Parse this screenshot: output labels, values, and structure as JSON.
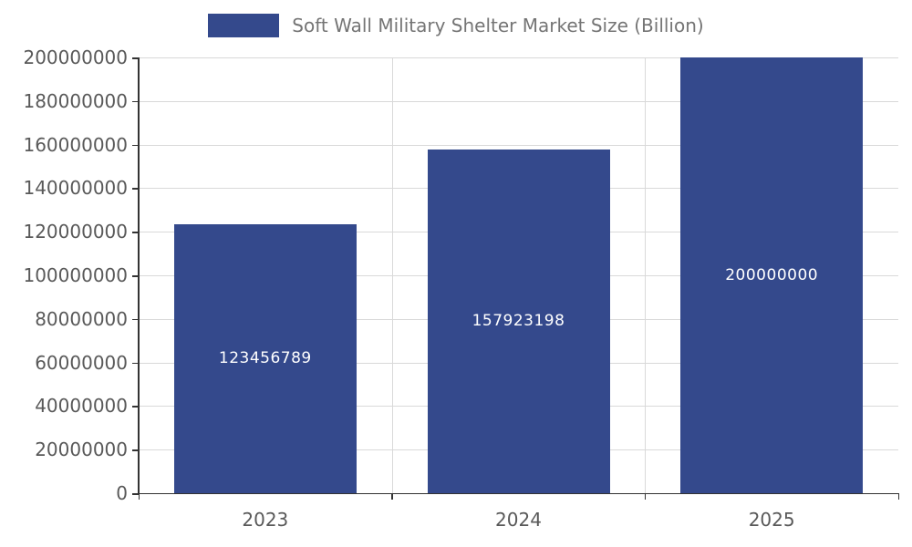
{
  "title": "Soft Wall Military Shelter Market Size (Billion)",
  "colors": {
    "bar": "#34498C",
    "grid": "#D9D9D9",
    "axis": "#333333",
    "tick_label": "#595959",
    "title_text": "#757575",
    "bar_label": "#FFFFFF",
    "background": "#FFFFFF"
  },
  "chart_data": {
    "type": "bar",
    "title": "Soft Wall Military Shelter Market Size (Billion)",
    "categories": [
      "2023",
      "2024",
      "2025"
    ],
    "values": [
      123456789,
      157923198,
      200000000
    ],
    "data_labels": [
      "123456789",
      "157923198",
      "200000000"
    ],
    "series": [
      {
        "name": "Soft Wall Military Shelter Market Size (Billion)",
        "values": [
          123456789,
          157923198,
          200000000
        ]
      }
    ],
    "xlabel": "",
    "ylabel": "",
    "ylim": [
      0,
      200000000
    ],
    "ytick_step": 20000000,
    "ytick_labels": [
      "0",
      "20000000",
      "40000000",
      "60000000",
      "80000000",
      "100000000",
      "120000000",
      "140000000",
      "160000000",
      "180000000",
      "200000000"
    ],
    "legend_position": "top",
    "grid": true
  }
}
